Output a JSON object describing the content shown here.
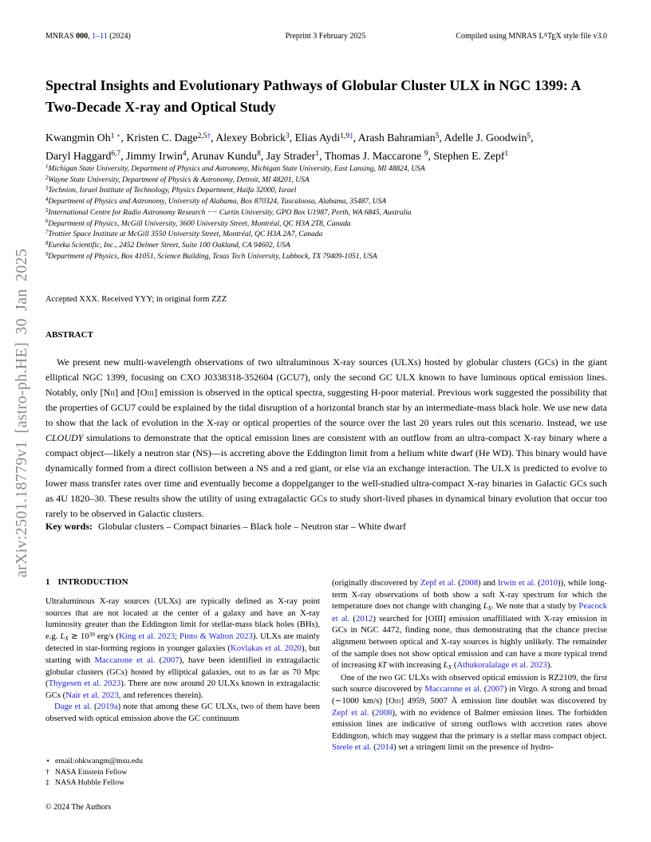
{
  "meta": {
    "arxiv_stamp": "arXiv:2501.18779v1  [astro-ph.HE]  30 Jan 2025"
  },
  "colors": {
    "link_blue": "#2121dd",
    "stamp_gray": "#8a8a8a"
  },
  "header": {
    "left": [
      {
        "t": "MNRAS "
      },
      {
        "t": "000",
        "c": "b"
      },
      {
        "t": ", "
      },
      {
        "t": "1–11",
        "c": "link"
      },
      {
        "t": " (2024)"
      }
    ],
    "center": "Preprint 3 February 2025",
    "right": [
      {
        "t": "Compiled using MNRAS L"
      },
      {
        "t": "A",
        "c": "lx-a"
      },
      {
        "t": "T"
      },
      {
        "t": "E",
        "c": "lx-e"
      },
      {
        "t": "X style file v3.0"
      }
    ]
  },
  "title": "Spectral Insights and Evolutionary Pathways of Globular Cluster ULX in NGC 1399: A Two-Decade X-ray and Optical Study",
  "authors": {
    "line1": [
      {
        "t": "Kwangmin Oh"
      },
      {
        "t": "1 ",
        "c": "sup"
      },
      {
        "t": "⋆",
        "c": "sup link"
      },
      {
        "t": ", Kristen C. Dage"
      },
      {
        "t": "2,5",
        "c": "sup"
      },
      {
        "t": "†",
        "c": "sup link"
      },
      {
        "t": ", Alexey Bobrick"
      },
      {
        "t": "3",
        "c": "sup"
      },
      {
        "t": ", Elias Aydi"
      },
      {
        "t": "1,9",
        "c": "sup"
      },
      {
        "t": "‡",
        "c": "sup link"
      },
      {
        "t": ", Arash Bahramian"
      },
      {
        "t": "5",
        "c": "sup"
      },
      {
        "t": ", Adelle J. Goodwin"
      },
      {
        "t": "5",
        "c": "sup"
      },
      {
        "t": ","
      }
    ],
    "line2": [
      {
        "t": "Daryl Haggard"
      },
      {
        "t": "6,7",
        "c": "sup"
      },
      {
        "t": ", Jimmy Irwin"
      },
      {
        "t": "4",
        "c": "sup"
      },
      {
        "t": ", Arunav Kundu"
      },
      {
        "t": "8",
        "c": "sup"
      },
      {
        "t": ", Jay Strader"
      },
      {
        "t": "1",
        "c": "sup"
      },
      {
        "t": ", Thomas J. Maccarone "
      },
      {
        "t": "9",
        "c": "sup"
      },
      {
        "t": ", Stephen E. Zepf"
      },
      {
        "t": "1",
        "c": "sup"
      }
    ]
  },
  "affiliations": [
    {
      "num": "1",
      "text": "Michigan State University, Department of Physics and Astronomy, Michigan State University, East Lansing, MI 48824, USA"
    },
    {
      "num": "2",
      "text": "Wayne State University, Department of Physics & Astronomy, Detroit, MI 48201, USA"
    },
    {
      "num": "3",
      "text": "Technion, Israel Institute of Technology, Physics Department, Haifa 32000, Israel"
    },
    {
      "num": "4",
      "text": "Department of Physics and Astronomy, University of Alabama, Box 870324, Tuscaloosa, Alabama, 35487, USA"
    },
    {
      "num": "5",
      "text": "International Centre for Radio Astronomy Research −− Curtin University, GPO Box U1987, Perth, WA 6845, Australia"
    },
    {
      "num": "6",
      "text": "Department of Physics, McGill University, 3600 University Street, Montréal, QC H3A 2T8, Canada"
    },
    {
      "num": "7",
      "text": "Trottier Space Institute at McGill 3550 University Street, Montréal, QC H3A 2A7, Canada"
    },
    {
      "num": "8",
      "text": "Eureka Scientific, Inc., 2452 Delmer Street, Suite 100 Oakland, CA 94602, USA"
    },
    {
      "num": "9",
      "text": "Department of Physics, Box 41051, Science Building, Texas Tech University, Lubbock, TX 79409-1051, USA"
    }
  ],
  "dates": "Accepted XXX. Received YYY; in original form ZZZ",
  "abstract": {
    "heading": "ABSTRACT",
    "body": [
      {
        "t": "We present new multi-wavelength observations of two ultraluminous X-ray sources (ULXs) hosted by globular clusters (GCs) in the giant elliptical NGC 1399, focusing on CXO J0338318-352604 (GCU7), only the second GC ULX known to have luminous optical emission lines. Notably, only [N"
      },
      {
        "t": "ii",
        "c": "sc"
      },
      {
        "t": "] and [O"
      },
      {
        "t": "iii",
        "c": "sc"
      },
      {
        "t": "] emission is observed in the optical spectra, suggesting H-poor material. Previous work suggested the possibility that the properties of GCU7 could be explained by the tidal disruption of a horizontal branch star by an intermediate-mass black hole. We use new data to show that the lack of evolution in the X-ray or optical properties of the source over the last 20 years rules out this scenario. Instead, we use "
      },
      {
        "t": "CLOUDY",
        "c": "i"
      },
      {
        "t": " simulations to demonstrate that the optical emission lines are consistent with an outflow from an ultra-compact X-ray binary where a compact object—likely a neutron star (NS)—is accreting above the Eddington limit from a helium white dwarf (He WD). This binary would have dynamically formed from a direct collision between a NS and a red giant, or else via an exchange interaction. The ULX is predicted to evolve to lower mass transfer rates over time and eventually become a doppelganger to the well-studied ultra-compact X-ray binaries in Galactic GCs such as 4U 1820–30. These results show the utility of using extragalactic GCs to study short-lived phases in dynamical binary evolution that occur too rarely to be observed in Galactic clusters."
      }
    ]
  },
  "keywords": {
    "label": "Key words:",
    "text": "Globular clusters – Compact binaries – Black hole – Neutron star – White dwarf"
  },
  "intro": {
    "number": "1",
    "heading": "INTRODUCTION",
    "p1": [
      {
        "t": "Ultraluminous X-ray sources (ULXs) are typically defined as X-ray point sources that are not located at the center of a galaxy and have an X-ray luminosity greater than the Eddington limit for stellar-mass black holes (BHs), e.g. "
      },
      {
        "t": "L",
        "c": "i"
      },
      {
        "t": "X",
        "c": "i sub"
      },
      {
        "t": " ≳ 10"
      },
      {
        "t": "39",
        "c": "sup"
      },
      {
        "t": " erg/s ("
      },
      {
        "t": "King et al. 2023",
        "c": "link"
      },
      {
        "t": "; "
      },
      {
        "t": "Pinto & Walton 2023",
        "c": "link"
      },
      {
        "t": "). ULXs are mainly detected in star-forming regions in younger galaxies ("
      },
      {
        "t": "Kovlakas et al. 2020",
        "c": "link"
      },
      {
        "t": "), but starting with "
      },
      {
        "t": "Maccarone et al.",
        "c": "link"
      },
      {
        "t": " ("
      },
      {
        "t": "2007",
        "c": "link"
      },
      {
        "t": "), have been identified in extragalactic globular clusters (GCs) hosted by elliptical galaxies, out to as far as 70 Mpc ("
      },
      {
        "t": "Thygesen et al. 2023",
        "c": "link"
      },
      {
        "t": "). There are now around 20 ULXs known in extragalactic GCs ("
      },
      {
        "t": "Nair et al. 2023",
        "c": "link"
      },
      {
        "t": ", and references therein)."
      }
    ],
    "p2": [
      {
        "t": "Dage et al.",
        "c": "link"
      },
      {
        "t": " ("
      },
      {
        "t": "2019a",
        "c": "link"
      },
      {
        "t": ") note that among these GC ULXs, two of them have been observed with optical emission above the GC continuum"
      }
    ]
  },
  "right_col": {
    "p1": [
      {
        "t": "(originally discovered by "
      },
      {
        "t": "Zepf et al.",
        "c": "link"
      },
      {
        "t": " ("
      },
      {
        "t": "2008",
        "c": "link"
      },
      {
        "t": ") and "
      },
      {
        "t": "Irwin et al.",
        "c": "link"
      },
      {
        "t": " ("
      },
      {
        "t": "2010",
        "c": "link"
      },
      {
        "t": ")), while long-term X-ray observations of both show a soft X-ray spectrum for which the temperature does not change with changing "
      },
      {
        "t": "L",
        "c": "i"
      },
      {
        "t": "X",
        "c": "i sub"
      },
      {
        "t": ". We note that a study by "
      },
      {
        "t": "Peacock et al.",
        "c": "link"
      },
      {
        "t": " ("
      },
      {
        "t": "2012",
        "c": "link"
      },
      {
        "t": ") searched for [OIII] emission unaffiliated with X-ray emission in GCs in NGC 4472, finding none, thus demonstrating that the chance precise alignment between optical and X-ray sources is highly unlikely. The remainder of the sample does not show optical emission and can have a more typical trend of increasing "
      },
      {
        "t": "kT",
        "c": "i"
      },
      {
        "t": " with increasing "
      },
      {
        "t": "L",
        "c": "i"
      },
      {
        "t": "X",
        "c": "i sub"
      },
      {
        "t": " ("
      },
      {
        "t": "Athukoralalage et al. 2023",
        "c": "link"
      },
      {
        "t": ")."
      }
    ],
    "p2": [
      {
        "t": "One of the two GC ULXs with observed optical emission is RZ2109, the first such source discovered by "
      },
      {
        "t": "Maccarone et al.",
        "c": "link"
      },
      {
        "t": " ("
      },
      {
        "t": "2007",
        "c": "link"
      },
      {
        "t": ") in Virgo. A strong and broad (∼1000 km/s) [O"
      },
      {
        "t": "iii",
        "c": "sc"
      },
      {
        "t": "] 4959, 5007 Å emission line doublet was discovered by "
      },
      {
        "t": "Zepf et al.",
        "c": "link"
      },
      {
        "t": " ("
      },
      {
        "t": "2008",
        "c": "link"
      },
      {
        "t": "), with no evidence of Balmer emission lines. The forbidden emission lines are indicative of strong outflows with accretion rates above Eddington, which may suggest that the primary is a stellar mass compact object. "
      },
      {
        "t": "Steele et al.",
        "c": "link"
      },
      {
        "t": " ("
      },
      {
        "t": "2014",
        "c": "link"
      },
      {
        "t": ") set a stringent limit on the presence of hydro-"
      }
    ]
  },
  "footnotes": [
    {
      "marker": "⋆",
      "text": "email:ohkwangm@msu.edu"
    },
    {
      "marker": "†",
      "text": "NASA Einstein Fellow"
    },
    {
      "marker": "‡",
      "text": "NASA Hubble Fellow"
    }
  ],
  "copyright": "© 2024 The Authors"
}
